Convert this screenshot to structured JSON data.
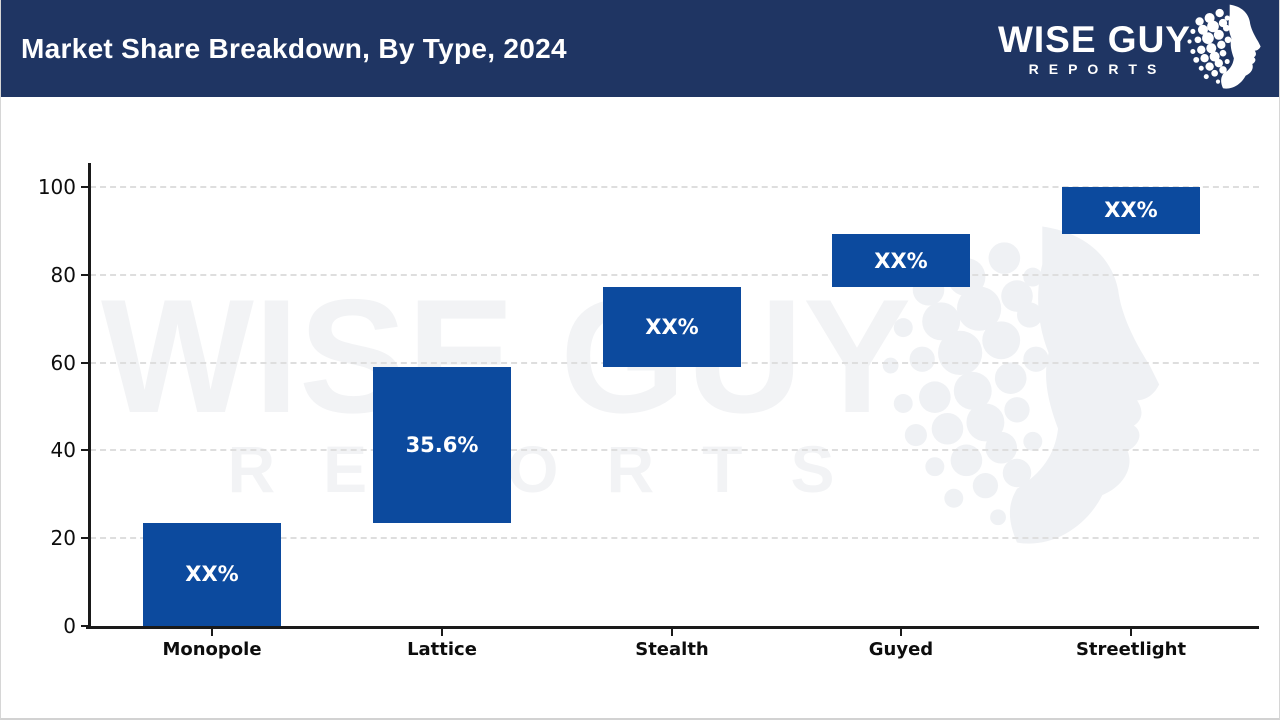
{
  "header": {
    "title": "Market Share Breakdown, By Type, 2024",
    "logo": {
      "line1": "WISE GUY",
      "line2": "REPORTS"
    }
  },
  "watermark": {
    "line1": "WISE GUY",
    "line2": "REPORTS"
  },
  "colors": {
    "header_bg": "#1f3563",
    "bar": "#0c4a9e",
    "bar_label": "#ffffff",
    "gridline": "#dedede",
    "axis": "#1a1a1a",
    "watermark": "#f2f3f5"
  },
  "chart_data": {
    "type": "bar",
    "subtype": "waterfall",
    "title": "Market Share Breakdown, By Type, 2024",
    "xlabel": "",
    "ylabel": "",
    "ylim": [
      0,
      105
    ],
    "yticks": [
      0,
      20,
      40,
      60,
      80,
      100
    ],
    "grid": "horizontal-dashed",
    "legend": "none",
    "categories": [
      "Monopole",
      "Lattice",
      "Stealth",
      "Guyed",
      "Streetlight"
    ],
    "segments": [
      {
        "category": "Monopole",
        "start": 0,
        "end": 23.5,
        "value_label": "XX%"
      },
      {
        "category": "Lattice",
        "start": 23.5,
        "end": 59.1,
        "value_label": "35.6%"
      },
      {
        "category": "Stealth",
        "start": 59.1,
        "end": 77.2,
        "value_label": "XX%"
      },
      {
        "category": "Guyed",
        "start": 77.2,
        "end": 89.3,
        "value_label": "XX%"
      },
      {
        "category": "Streetlight",
        "start": 89.3,
        "end": 100,
        "value_label": "XX%"
      }
    ]
  }
}
